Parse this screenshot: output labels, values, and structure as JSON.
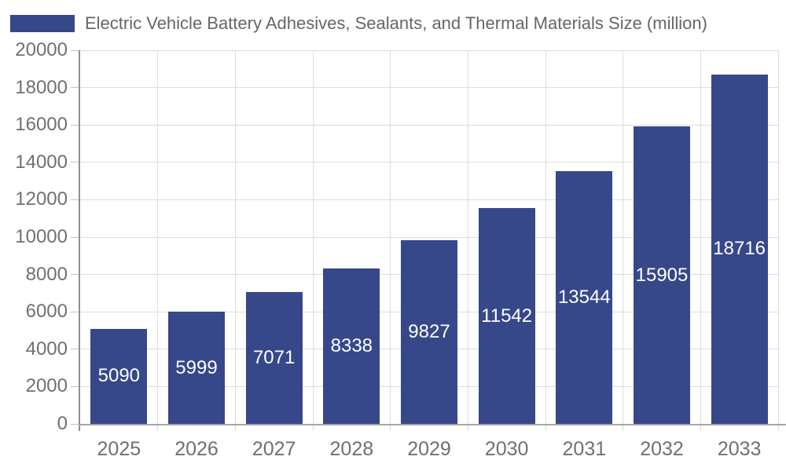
{
  "chart_data": {
    "type": "bar",
    "title": "Electric Vehicle Battery Adhesives, Sealants, and Thermal Materials Size (million)",
    "categories": [
      "2025",
      "2026",
      "2027",
      "2028",
      "2029",
      "2030",
      "2031",
      "2032",
      "2033"
    ],
    "values": [
      5090,
      5999,
      7071,
      8338,
      9827,
      11542,
      13544,
      15905,
      18716
    ],
    "xlabel": "",
    "ylabel": "",
    "ylim": [
      0,
      20000
    ],
    "yticks": [
      0,
      2000,
      4000,
      6000,
      8000,
      10000,
      12000,
      14000,
      16000,
      18000,
      20000
    ],
    "grid": true,
    "legend_position": "top-left",
    "value_label_position": "inside-center"
  },
  "legend": {
    "series_label": "Electric Vehicle Battery Adhesives, Sealants, and Thermal Materials Size (million)"
  },
  "colors": {
    "bar": "#37488A",
    "value_label": "#FFFFFF",
    "title_text": "#666666",
    "tick_text": "#707070",
    "gridline": "#DDDDDD",
    "tick_mark": "#C4C4C4",
    "y_axis_line": "#8F8F8F",
    "x_axis_line": "#A6A6A6",
    "background": "#FFFFFF"
  }
}
